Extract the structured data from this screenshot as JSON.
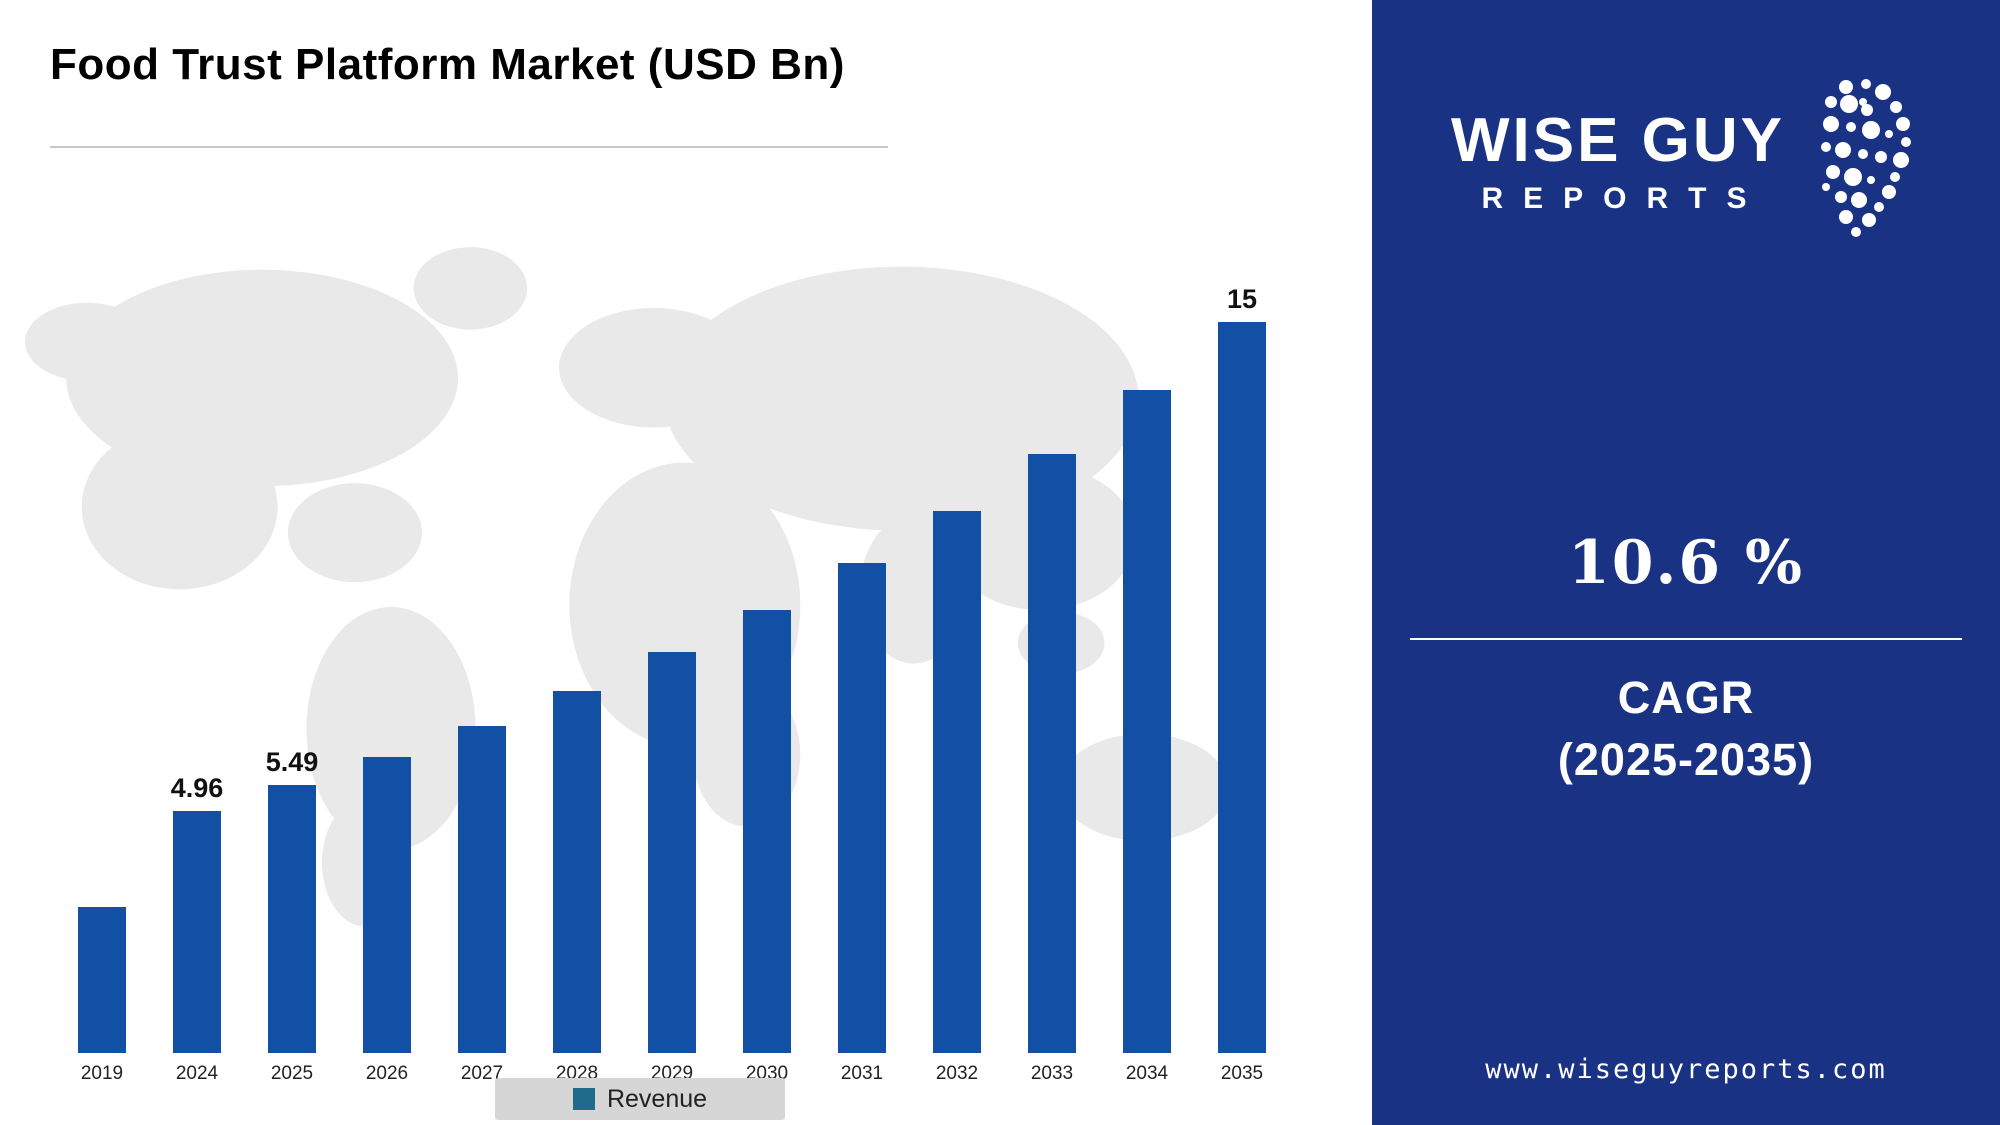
{
  "title": "Food Trust Platform Market (USD Bn)",
  "chart_data": {
    "type": "bar",
    "title": "Food Trust Platform Market (USD Bn)",
    "xlabel": "",
    "ylabel": "",
    "categories": [
      "2019",
      "2024",
      "2025",
      "2026",
      "2027",
      "2028",
      "2029",
      "2030",
      "2031",
      "2032",
      "2033",
      "2034",
      "2035"
    ],
    "values": [
      3.0,
      4.96,
      5.49,
      6.07,
      6.72,
      7.43,
      8.22,
      9.09,
      10.05,
      11.12,
      12.3,
      13.6,
      15
    ],
    "bar_labels": [
      "",
      "4.96",
      "5.49",
      "",
      "",
      "",
      "",
      "",
      "",
      "",
      "",
      "",
      "15"
    ],
    "ylim": [
      0,
      15
    ],
    "grid": false,
    "bar_color": "#1150a4",
    "legend_position": "bottom",
    "legend": [
      {
        "label": "Revenue",
        "color": "#1f6b8c"
      }
    ]
  },
  "sidebar": {
    "logo_line1": "WISE GUY",
    "logo_line2": "REPORTS",
    "cagr_value": "10.6 %",
    "cagr_label": "CAGR",
    "cagr_period": "(2025-2035)",
    "website": "www.wiseguyreports.com",
    "bg_color": "#1a3283"
  }
}
